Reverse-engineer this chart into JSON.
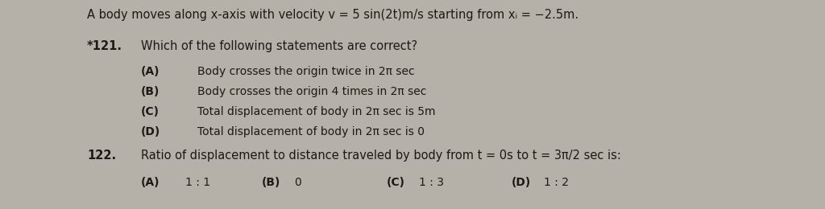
{
  "background_color": "#b5b0a8",
  "header": "A body moves along x-axis with velocity v = 5 sin(2t)m/s starting from xᵢ = −2.5m.",
  "q121_number": "*121.",
  "q121_text": "Which of the following statements are correct?",
  "q121_options": [
    {
      "label": "(A)",
      "text": "Body crosses the origin twice in 2π sec"
    },
    {
      "label": "(B)",
      "text": "Body crosses the origin 4 times in 2π sec"
    },
    {
      "label": "(C)",
      "text": "Total displacement of body in 2π sec is 5m"
    },
    {
      "label": "(D)",
      "text": "Total displacement of body in 2π sec is 0"
    }
  ],
  "q122_number": "122.",
  "q122_text": "Ratio of displacement to distance traveled by body from t = 0s to t = 3π/2 sec is:",
  "q122_options": [
    {
      "label": "(A)",
      "text": "1 : 1"
    },
    {
      "label": "(B)",
      "text": "0"
    },
    {
      "label": "(C)",
      "text": "1 : 3"
    },
    {
      "label": "(D)",
      "text": "1 : 2"
    }
  ],
  "text_color": "#1c1a14",
  "font_size_header": 10.5,
  "font_size_question": 10.5,
  "font_size_option": 10.0,
  "fig_width": 10.24,
  "fig_height": 2.6
}
